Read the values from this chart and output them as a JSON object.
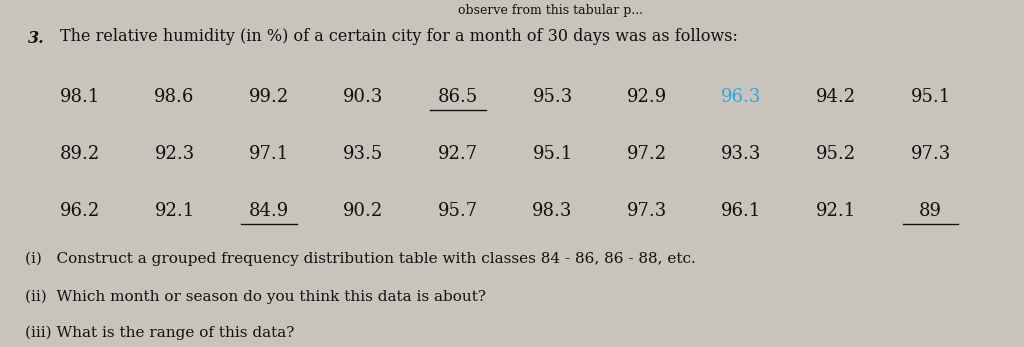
{
  "background_color": "#c8c4bc",
  "question_number": "3.",
  "title_line": "The relative humidity (in %) of a certain city for a month of 30 days was as follows:",
  "data_rows": [
    [
      "98.1",
      "98.6",
      "99.2",
      "90.3",
      "86.5",
      "95.3",
      "92.9",
      "96.3",
      "94.2",
      "95.1"
    ],
    [
      "89.2",
      "92.3",
      "97.1",
      "93.5",
      "92.7",
      "95.1",
      "97.2",
      "93.3",
      "95.2",
      "97.3"
    ],
    [
      "96.2",
      "92.1",
      "84.9",
      "90.2",
      "95.7",
      "98.3",
      "97.3",
      "96.1",
      "92.1",
      "89"
    ]
  ],
  "underlined_indices": {
    "0": [
      4
    ],
    "1": [],
    "2": [
      2,
      9
    ]
  },
  "colored_index": {
    "row": 0,
    "col": 7,
    "color": "#2aabe0"
  },
  "sub_questions": [
    "(i)   Construct a grouped frequency distribution table with classes 84 - 86, 86 - 88, etc.",
    "(ii)  Which month or season do you think this data is about?",
    "(iii) What is the range of this data?"
  ],
  "top_text": "observe from this tabular p...",
  "font_size_title": 11.5,
  "font_size_data": 13,
  "font_size_sub": 11,
  "font_size_top": 9,
  "text_color": "#111111"
}
